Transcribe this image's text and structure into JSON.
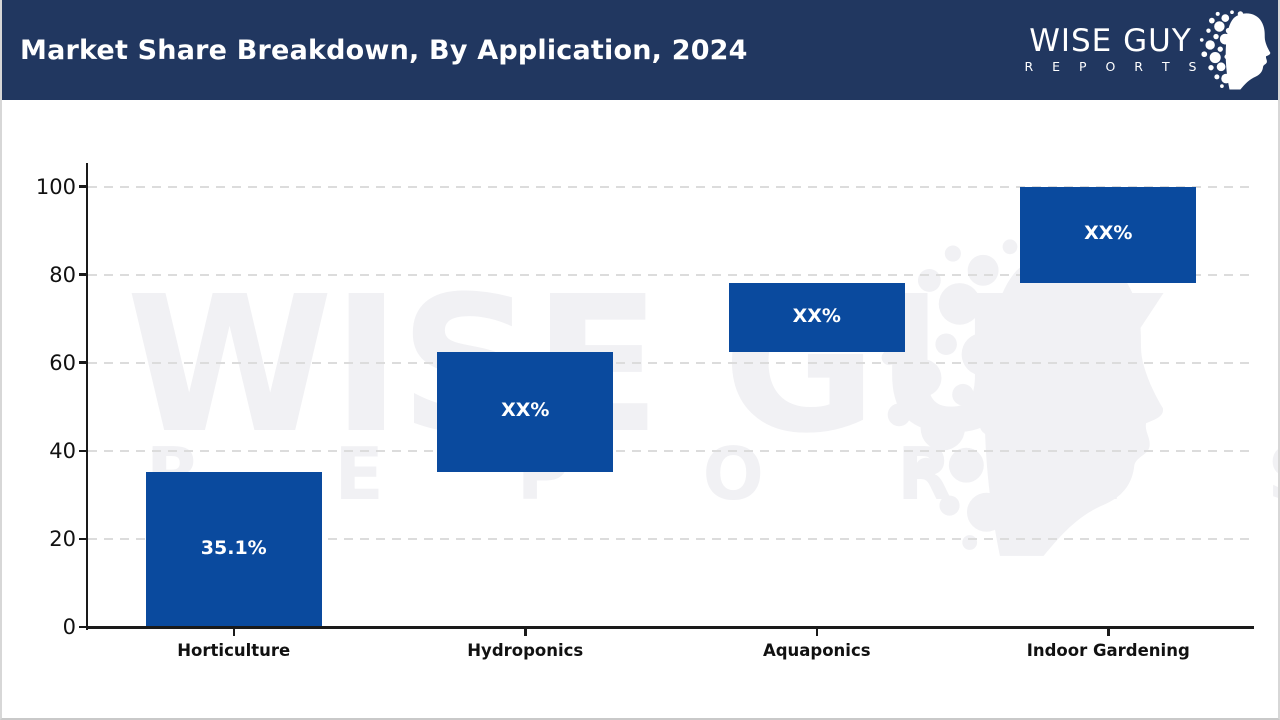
{
  "header": {
    "title": "Market Share Breakdown, By Application, 2024",
    "logo": {
      "line1": "WISE GUY",
      "line2": "R E P O R T S"
    }
  },
  "watermark": {
    "line1": "WISE GUY",
    "line2": "R E P O R T S"
  },
  "colors": {
    "header_bg": "#213760",
    "bar_fill": "#0a4a9e",
    "bar_label": "#ffffff",
    "gridline": "#dcdcdc",
    "axis": "#1a1a1a",
    "watermark": "#f1f1f4",
    "title_text": "#ffffff"
  },
  "chart_data": {
    "type": "bar",
    "subtype": "waterfall",
    "title": "Market Share Breakdown, By Application, 2024",
    "xlabel": "",
    "ylabel": "",
    "categories": [
      "Horticulture",
      "Hydroponics",
      "Aquaponics",
      "Indoor Gardening"
    ],
    "segments": [
      {
        "category": "Horticulture",
        "start": 0,
        "end": 35.1,
        "value": 35.1,
        "label": "35.1%"
      },
      {
        "category": "Hydroponics",
        "start": 35.1,
        "end": 62.4,
        "value": 27.3,
        "label": "XX%"
      },
      {
        "category": "Aquaponics",
        "start": 62.4,
        "end": 78.0,
        "value": 15.6,
        "label": "XX%"
      },
      {
        "category": "Indoor Gardening",
        "start": 78.0,
        "end": 100.0,
        "value": 22.0,
        "label": "XX%"
      }
    ],
    "y_ticks": [
      0,
      20,
      40,
      60,
      80,
      100
    ],
    "ylim": [
      0,
      105
    ],
    "grid": "horizontal dashed",
    "legend": "none"
  }
}
